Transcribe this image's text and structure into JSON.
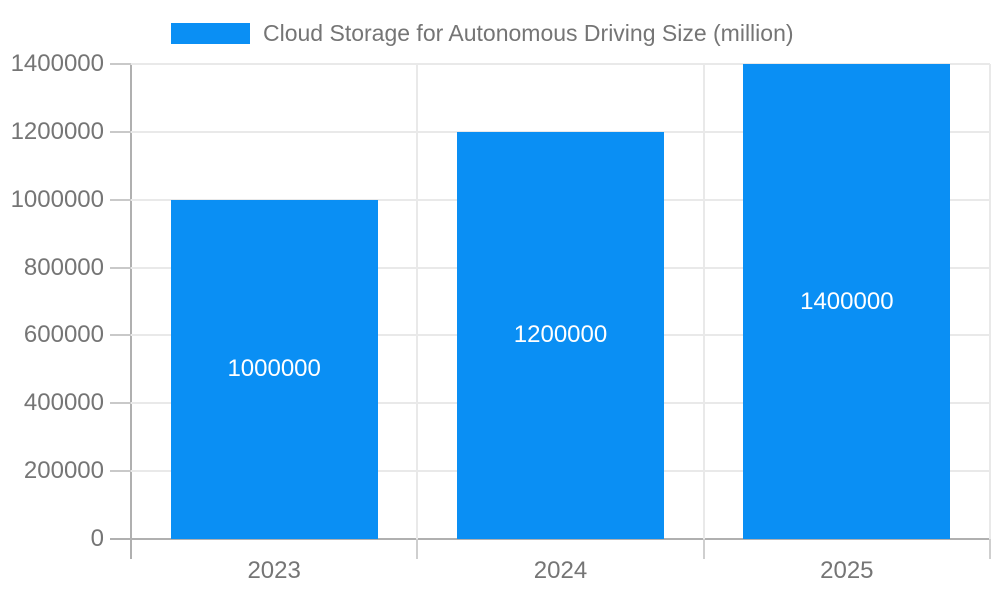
{
  "legend": {
    "swatch_icon": "series-color-swatch"
  },
  "chart_data": {
    "type": "bar",
    "title": "Cloud Storage for Autonomous Driving Size (million)",
    "categories": [
      "2023",
      "2024",
      "2025"
    ],
    "series": [
      {
        "name": "Cloud Storage for Autonomous Driving Size (million)",
        "values": [
          1000000,
          1200000,
          1400000
        ]
      }
    ],
    "values": [
      1000000,
      1200000,
      1400000
    ],
    "bar_value_labels": [
      "1000000",
      "1200000",
      "1400000"
    ],
    "xlabel": "",
    "ylabel": "",
    "ylim": [
      0,
      1400000
    ],
    "yticks": [
      0,
      200000,
      400000,
      600000,
      800000,
      1000000,
      1200000,
      1400000
    ],
    "ytick_labels": [
      "0",
      "200000",
      "400000",
      "600000",
      "800000",
      "1000000",
      "1200000",
      "1400000"
    ],
    "grid": "on",
    "legend_position": "top",
    "colors": {
      "bar": "#0a8ff4",
      "axis_text": "#757575",
      "title_text": "#757575",
      "value_text": "#ffffff",
      "gridline": "#e9e9e9",
      "axis_line": "#b0b0b0",
      "tick_mark": "#c9c9c9",
      "background": "#ffffff"
    }
  }
}
